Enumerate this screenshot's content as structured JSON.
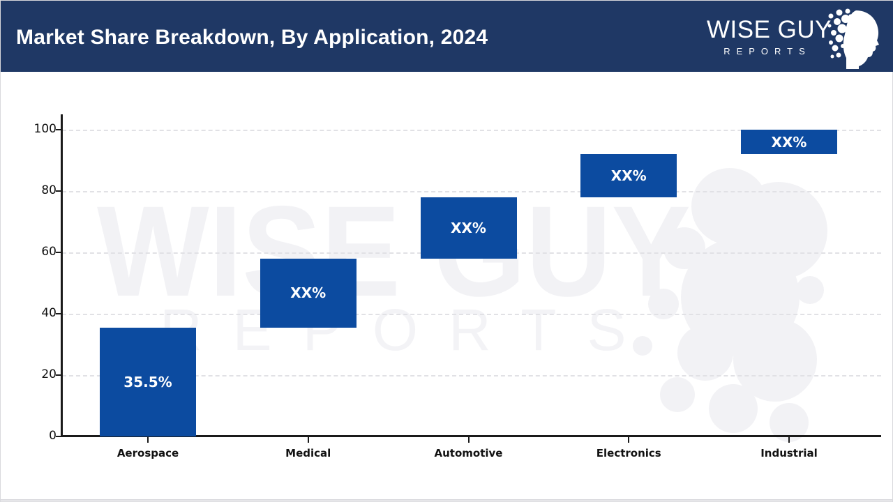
{
  "header": {
    "title": "Market Share Breakdown, By Application, 2024",
    "bg_color": "#1f3865"
  },
  "logo": {
    "line1": "WISE GUY",
    "line2": "REPORTS"
  },
  "watermark": {
    "line1": "WISE GUY",
    "line2": "REPORTS"
  },
  "chart_data": {
    "type": "bar",
    "subtype": "waterfall",
    "title": "Market Share Breakdown, By Application, 2024",
    "categories": [
      "Aerospace",
      "Medical",
      "Automotive",
      "Electronics",
      "Industrial"
    ],
    "segments": [
      {
        "category": "Aerospace",
        "start": 0,
        "end": 35.5,
        "label": "35.5%"
      },
      {
        "category": "Medical",
        "start": 35.5,
        "end": 58,
        "label": "XX%"
      },
      {
        "category": "Automotive",
        "start": 58,
        "end": 78,
        "label": "XX%"
      },
      {
        "category": "Electronics",
        "start": 78,
        "end": 92,
        "label": "XX%"
      },
      {
        "category": "Industrial",
        "start": 92,
        "end": 100,
        "label": "XX%"
      }
    ],
    "yticks": [
      0,
      20,
      40,
      60,
      80,
      100
    ],
    "ylim": [
      0,
      105
    ],
    "xlabel": "",
    "ylabel": "",
    "grid": "horizontal-dashed",
    "legend": "none",
    "bar_color": "#0c4ba0",
    "bar_label_color": "#ffffff",
    "axis_color": "#1a1a1a"
  }
}
